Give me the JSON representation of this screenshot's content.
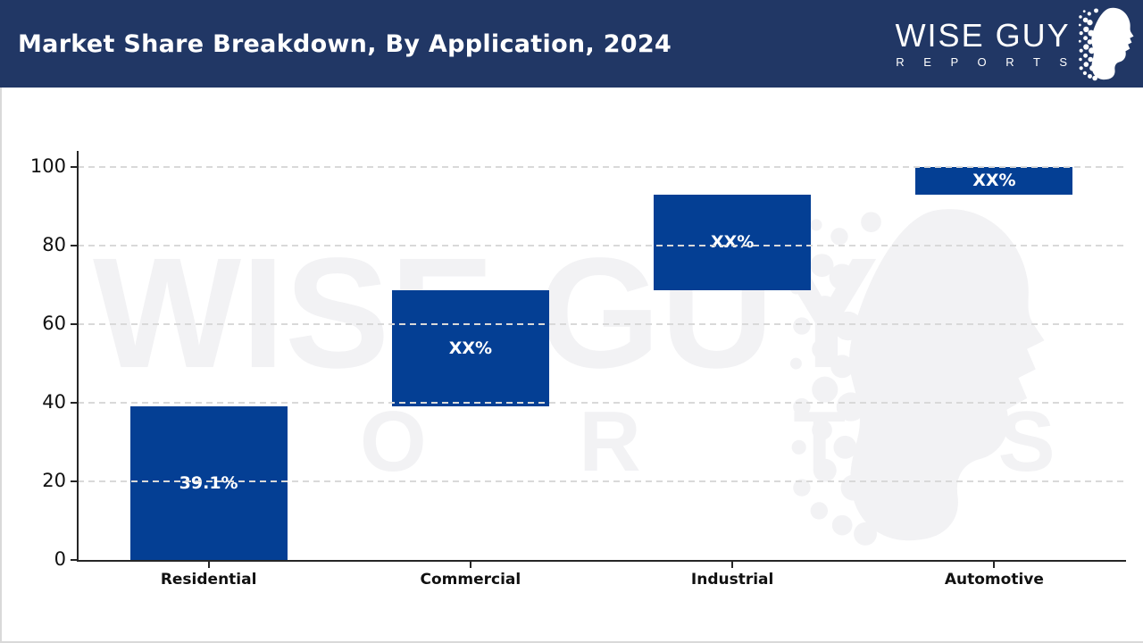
{
  "header": {
    "title": "Market Share Breakdown, By Application, 2024",
    "bg_color": "#213765",
    "logo": {
      "line1": "WISE GUY",
      "line2": "R E P O R T S"
    }
  },
  "watermark": {
    "line1": "WISE GUY",
    "line2": "P O R T S"
  },
  "chart_data": {
    "type": "bar",
    "subtype": "waterfall",
    "title": "Market Share Breakdown, By Application, 2024",
    "categories": [
      "Residential",
      "Commercial",
      "Industrial",
      "Automotive"
    ],
    "segments": [
      {
        "category": "Residential",
        "start": 0,
        "end": 39.1,
        "label": "39.1%"
      },
      {
        "category": "Commercial",
        "start": 39.1,
        "end": 68.6,
        "label": "XX%"
      },
      {
        "category": "Industrial",
        "start": 68.6,
        "end": 93.0,
        "label": "XX%"
      },
      {
        "category": "Automotive",
        "start": 93.0,
        "end": 100.0,
        "label": "XX%"
      }
    ],
    "xlabel": "",
    "ylabel": "",
    "ylim": [
      0,
      100
    ],
    "yticks": [
      0,
      20,
      40,
      60,
      80,
      100
    ],
    "grid": true,
    "gridline_color": "#d9d9d9",
    "bar_color": "#043f94",
    "bar_label_color": "#ffffff",
    "axis_color": "#262626",
    "legend": "none"
  }
}
